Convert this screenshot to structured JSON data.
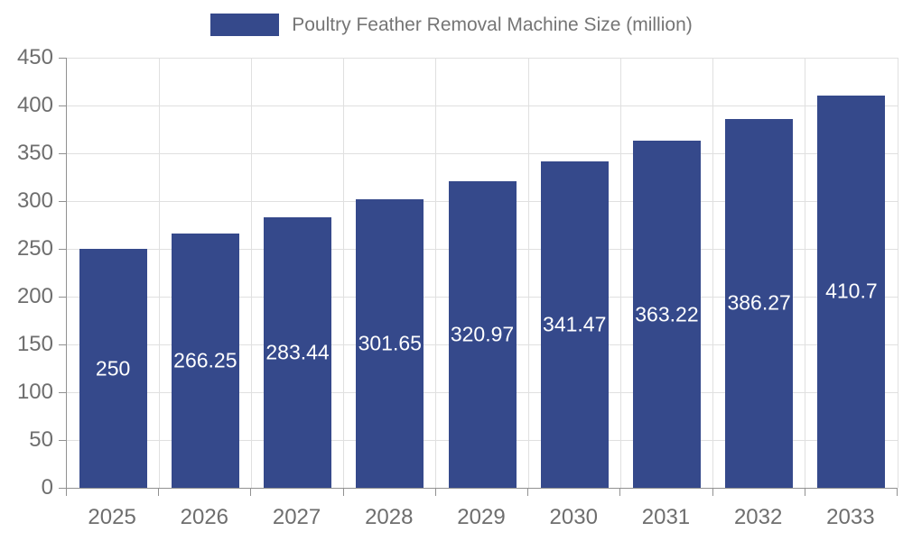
{
  "legend": {
    "label": "Poultry Feather Removal Machine Size (million)"
  },
  "chart_data": {
    "type": "bar",
    "title": "Poultry Feather Removal Machine Size (million)",
    "xlabel": "",
    "ylabel": "",
    "categories": [
      "2025",
      "2026",
      "2027",
      "2028",
      "2029",
      "2030",
      "2031",
      "2032",
      "2033"
    ],
    "series": [
      {
        "name": "Poultry Feather Removal Machine Size (million)",
        "values": [
          250,
          266.25,
          283.44,
          301.65,
          320.97,
          341.47,
          363.22,
          386.27,
          410.7
        ]
      }
    ],
    "value_labels": [
      "250",
      "266.25",
      "283.44",
      "301.65",
      "320.97",
      "341.47",
      "363.22",
      "386.27",
      "410.7"
    ],
    "ylim": [
      0,
      450
    ],
    "ytick_step": 50,
    "grid": true,
    "legend_position": "top-center",
    "colors": {
      "bar": "#35498B",
      "grid": "#E0E0E0",
      "axis": "#919191",
      "tick_text": "#6E6E6E",
      "title_text": "#757575",
      "value_text": "#FFFFFF",
      "background": "#FFFFFF"
    }
  }
}
